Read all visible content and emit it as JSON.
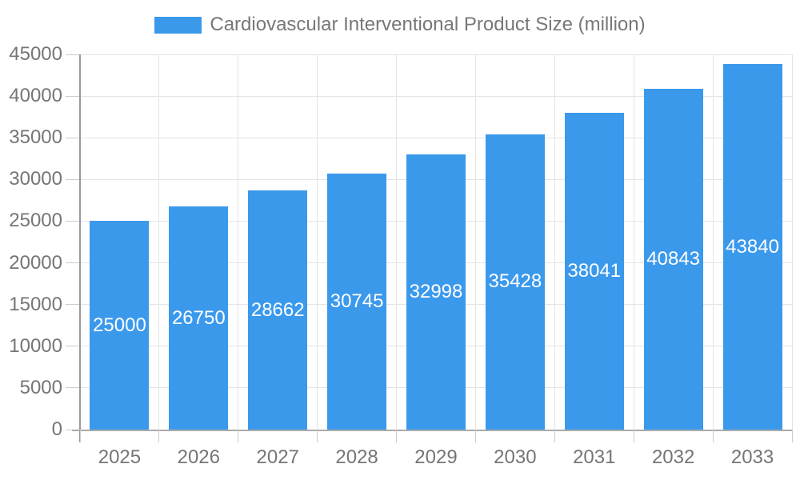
{
  "legend": {
    "label": "Cardiovascular Interventional Product Size (million)"
  },
  "colors": {
    "bar": "#3B99EC",
    "bar_label": "#ffffff",
    "grid": "#e4e4e4",
    "y_axis_line": "#999999",
    "x_axis_line": "#aaaaaa",
    "tick": "#cccccc",
    "axis_label": "#757575",
    "legend_text": "#777777",
    "background": "#ffffff"
  },
  "chart_data": {
    "type": "bar",
    "title": "",
    "xlabel": "",
    "ylabel": "",
    "categories": [
      "2025",
      "2026",
      "2027",
      "2028",
      "2029",
      "2030",
      "2031",
      "2032",
      "2033"
    ],
    "series": [
      {
        "name": "Cardiovascular Interventional Product Size (million)",
        "values": [
          25000,
          26750,
          28662,
          30745,
          32998,
          35428,
          38041,
          40843,
          43840
        ]
      }
    ],
    "ylim": [
      0,
      45000
    ],
    "ytick_step": 5000,
    "yticks": [
      0,
      5000,
      10000,
      15000,
      20000,
      25000,
      30000,
      35000,
      40000,
      45000
    ],
    "grid": true,
    "value_labels": "inside-center",
    "legend_position": "top-center"
  }
}
